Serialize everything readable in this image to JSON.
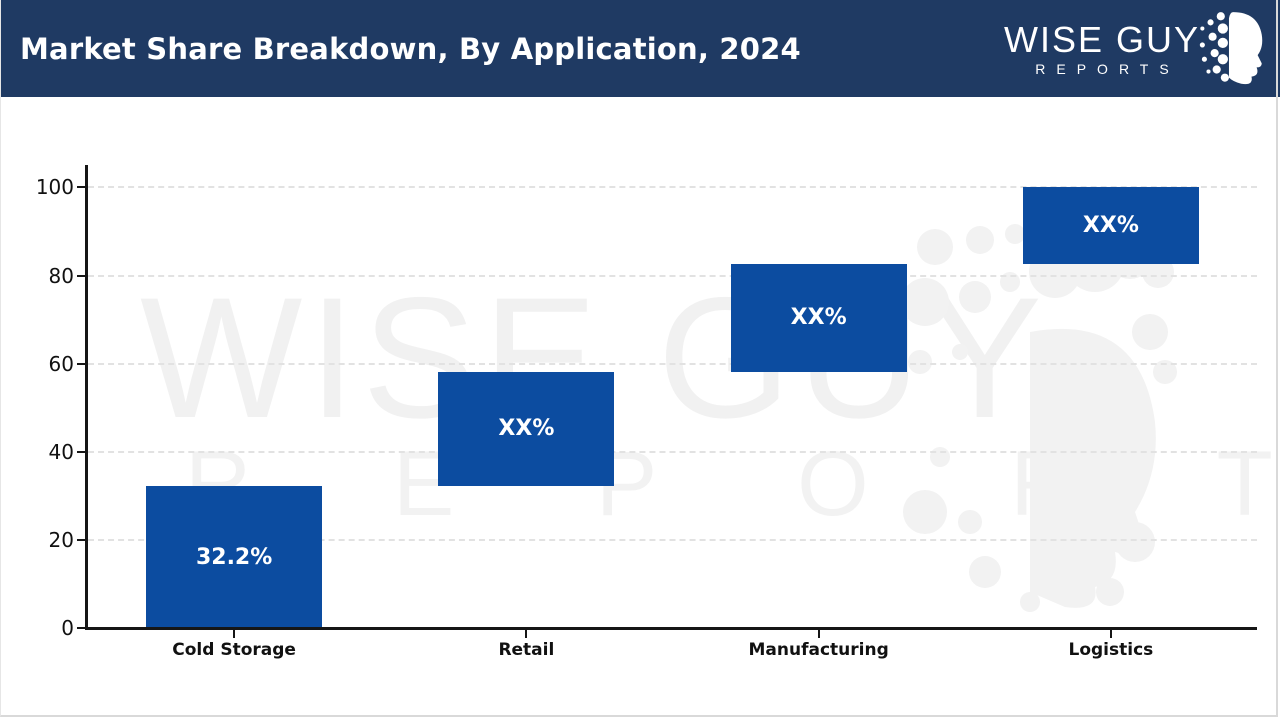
{
  "header": {
    "title": "Market Share Breakdown, By Application, 2024",
    "logo": {
      "line1": "WISE GUY",
      "line2": "REPORTS"
    }
  },
  "watermark": {
    "line1": "WISE GUY",
    "line2": "R E P O R T S"
  },
  "colors": {
    "header_bg": "#1f3a63",
    "bar_fill": "#0c4ca0",
    "bar_label_text": "#ffffff",
    "axis": "#161616",
    "grid": "#e2e2e2",
    "tick_text": "#111111",
    "watermark": "#f1f1f1"
  },
  "chart_data": {
    "type": "bar",
    "subtype": "waterfall",
    "title": "Market Share Breakdown, By Application, 2024",
    "categories": [
      "Cold Storage",
      "Retail",
      "Manufacturing",
      "Logistics"
    ],
    "segments": [
      {
        "category": "Cold Storage",
        "start": 0,
        "end": 32.2,
        "label": "32.2%"
      },
      {
        "category": "Retail",
        "start": 32.2,
        "end": 58.2,
        "label": "XX%"
      },
      {
        "category": "Manufacturing",
        "start": 58.2,
        "end": 82.7,
        "label": "XX%"
      },
      {
        "category": "Logistics",
        "start": 82.7,
        "end": 100,
        "label": "XX%"
      }
    ],
    "xlabel": "",
    "ylabel": "",
    "ylim": [
      0,
      105.1
    ],
    "yticks": [
      0,
      20,
      40,
      60,
      80,
      100
    ],
    "grid": "horizontal-dashed",
    "legend": "none"
  }
}
